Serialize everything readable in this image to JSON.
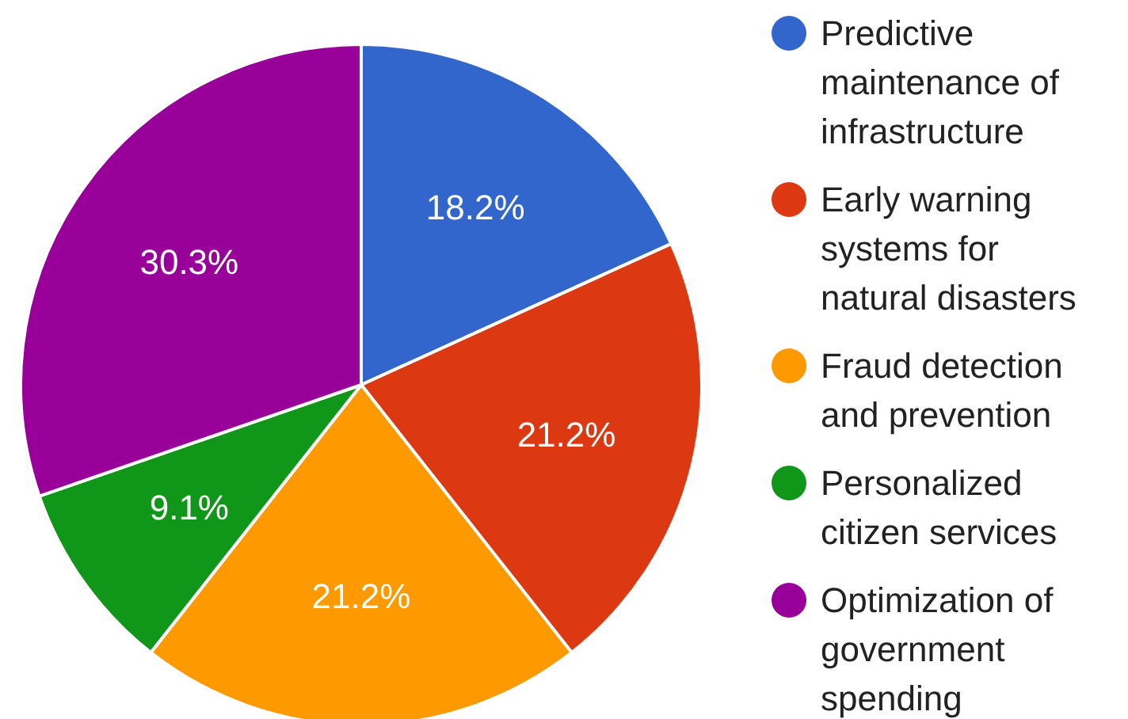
{
  "chart_data": {
    "type": "pie",
    "categories": [
      "Predictive maintenance of infrastructure",
      "Early warning systems for natural disasters",
      "Fraud detection and prevention",
      "Personalized citizen services",
      "Optimization of government spending"
    ],
    "values": [
      18.2,
      21.2,
      21.2,
      9.1,
      30.3
    ],
    "colors": [
      "#3366cc",
      "#dc3912",
      "#ff9900",
      "#109618",
      "#990099"
    ],
    "value_labels": [
      "18.2%",
      "21.2%",
      "21.2%",
      "9.1%",
      "30.3%"
    ],
    "legend": "right"
  }
}
